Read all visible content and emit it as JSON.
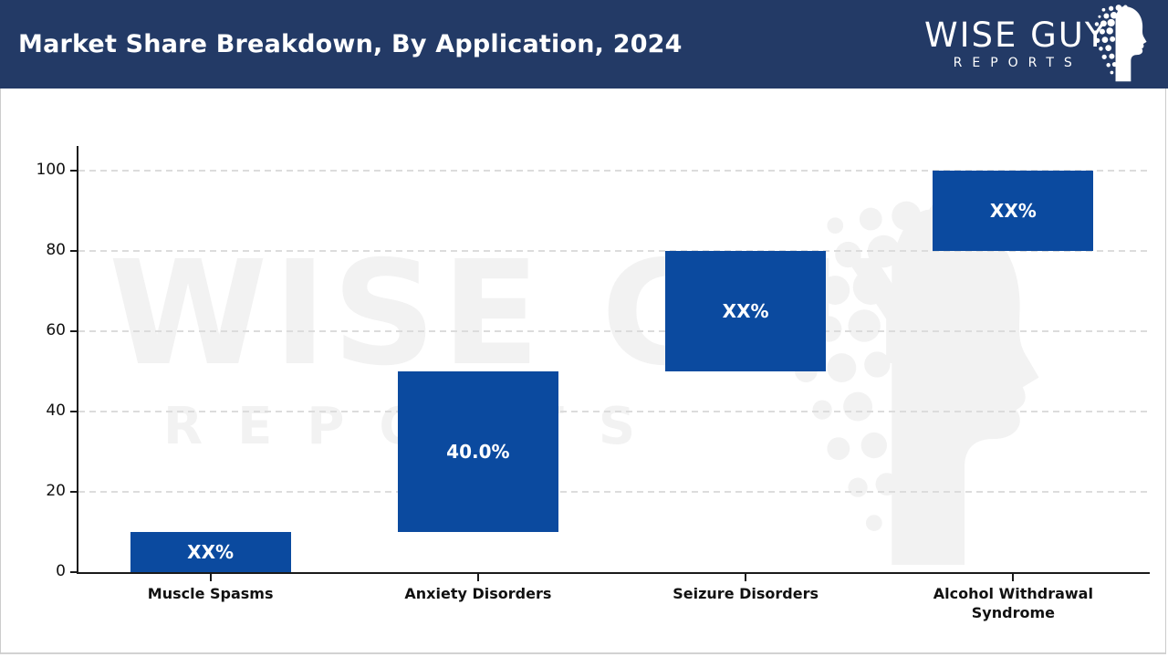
{
  "header": {
    "title": "Market Share Breakdown, By Application, 2024",
    "bg_color": "#233A66",
    "logo": {
      "line1": "WISE GUY",
      "line2": "REPORTS"
    }
  },
  "watermark": {
    "line1": "WISE GUY",
    "line2": "REPORTS"
  },
  "chart_data": {
    "type": "bar",
    "subtype": "waterfall",
    "title": "Market Share Breakdown, By Application, 2024",
    "categories": [
      "Muscle Spasms",
      "Anxiety Disorders",
      "Seizure Disorders",
      "Alcohol Withdrawal Syndrome"
    ],
    "series": [
      {
        "name": "Market Share",
        "segments": [
          {
            "category": "Muscle Spasms",
            "start": 0,
            "end": 10,
            "value_label": "XX%"
          },
          {
            "category": "Anxiety Disorders",
            "start": 10,
            "end": 50,
            "value_label": "40.0%"
          },
          {
            "category": "Seizure Disorders",
            "start": 50,
            "end": 80,
            "value_label": "XX%"
          },
          {
            "category": "Alcohol Withdrawal Syndrome",
            "start": 80,
            "end": 100,
            "value_label": "XX%"
          }
        ]
      }
    ],
    "y_ticks": [
      0,
      20,
      40,
      60,
      80,
      100
    ],
    "ylim": [
      0,
      105
    ],
    "xlabel": "",
    "ylabel": "",
    "grid": "horizontal-dashed",
    "legend": "none",
    "bar_color": "#0B4A9F",
    "bar_label_color": "#ffffff"
  }
}
